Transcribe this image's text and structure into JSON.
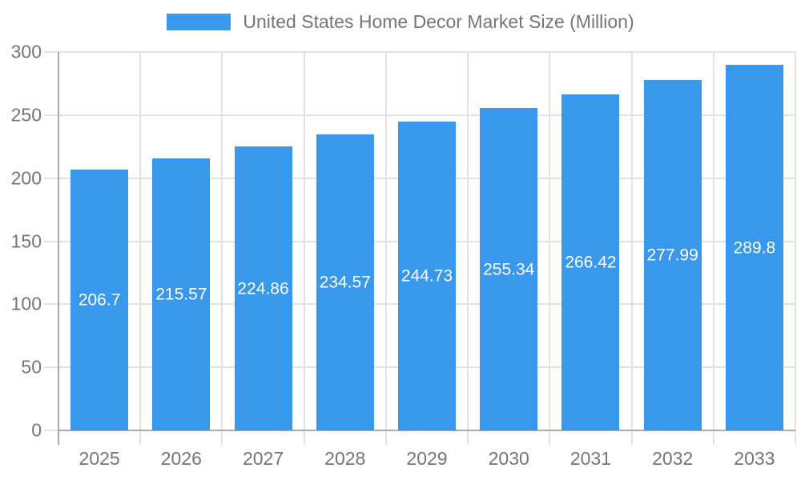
{
  "chart_data": {
    "type": "bar",
    "title": "United States Home Decor Market Size (Million)",
    "legend": {
      "position": "top",
      "label": "United States Home Decor Market Size (Million)"
    },
    "categories": [
      "2025",
      "2026",
      "2027",
      "2028",
      "2029",
      "2030",
      "2031",
      "2032",
      "2033"
    ],
    "values": [
      206.7,
      215.57,
      224.86,
      234.57,
      244.73,
      255.34,
      266.42,
      277.99,
      289.8
    ],
    "value_labels": [
      "206.7",
      "215.57",
      "224.86",
      "234.57",
      "244.73",
      "255.34",
      "266.42",
      "277.99",
      "289.8"
    ],
    "xlabel": "",
    "ylabel": "",
    "ylim": [
      0,
      300
    ],
    "yticks": [
      0,
      50,
      100,
      150,
      200,
      250,
      300
    ],
    "grid": true,
    "colors": {
      "bar": "#3899EC",
      "value_label": "#FFFFFF",
      "axis_line": "#ABABAB",
      "gridline": "#E2E2E2",
      "text": "#757575"
    }
  }
}
